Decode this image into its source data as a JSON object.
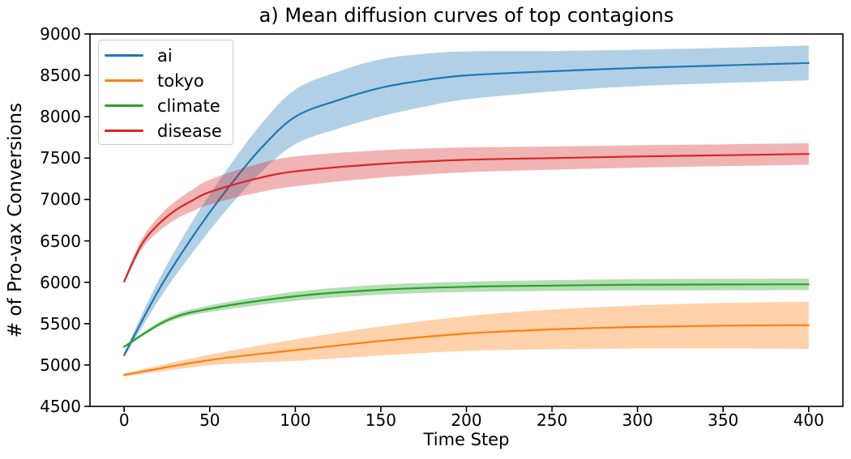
{
  "chart_data": {
    "type": "line",
    "title": "a) Mean diffusion curves of top contagions",
    "xlabel": "Time Step",
    "ylabel": "# of Pro-vax Conversions",
    "xlim": [
      -20,
      420
    ],
    "ylim": [
      4500,
      9000
    ],
    "xticks": [
      0,
      50,
      100,
      150,
      200,
      250,
      300,
      350,
      400
    ],
    "yticks": [
      4500,
      5000,
      5500,
      6000,
      6500,
      7000,
      7500,
      8000,
      8500,
      9000
    ],
    "grid": false,
    "band_alpha": 0.35,
    "legend": {
      "position": "upper left",
      "entries": [
        "ai",
        "tokyo",
        "climate",
        "disease"
      ]
    },
    "series": [
      {
        "name": "ai",
        "color": "#1f77b4",
        "x": [
          0,
          20,
          40,
          60,
          80,
          100,
          125,
          150,
          175,
          200,
          250,
          300,
          350,
          400
        ],
        "y": [
          5120,
          5900,
          6550,
          7120,
          7620,
          8000,
          8200,
          8350,
          8440,
          8500,
          8550,
          8590,
          8620,
          8650
        ],
        "band": [
          30,
          120,
          190,
          240,
          290,
          330,
          345,
          345,
          320,
          290,
          245,
          220,
          212,
          210
        ]
      },
      {
        "name": "tokyo",
        "color": "#ff7f0e",
        "x": [
          0,
          50,
          100,
          150,
          200,
          250,
          300,
          350,
          400
        ],
        "y": [
          4880,
          5060,
          5180,
          5290,
          5380,
          5430,
          5460,
          5475,
          5480
        ],
        "band": [
          20,
          65,
          130,
          175,
          210,
          240,
          260,
          275,
          285
        ]
      },
      {
        "name": "climate",
        "color": "#2ca02c",
        "x": [
          0,
          25,
          50,
          100,
          150,
          200,
          250,
          300,
          350,
          400
        ],
        "y": [
          5220,
          5540,
          5680,
          5830,
          5910,
          5945,
          5960,
          5970,
          5973,
          5975
        ],
        "band": [
          15,
          30,
          40,
          55,
          60,
          62,
          65,
          68,
          70,
          70
        ]
      },
      {
        "name": "disease",
        "color": "#d62728",
        "x": [
          0,
          10,
          20,
          30,
          40,
          50,
          75,
          100,
          150,
          200,
          250,
          300,
          350,
          400
        ],
        "y": [
          6010,
          6450,
          6700,
          6870,
          6990,
          7090,
          7240,
          7340,
          7430,
          7480,
          7500,
          7520,
          7535,
          7550
        ],
        "band": [
          30,
          60,
          90,
          110,
          130,
          150,
          170,
          180,
          165,
          150,
          140,
          135,
          132,
          130
        ]
      }
    ]
  }
}
